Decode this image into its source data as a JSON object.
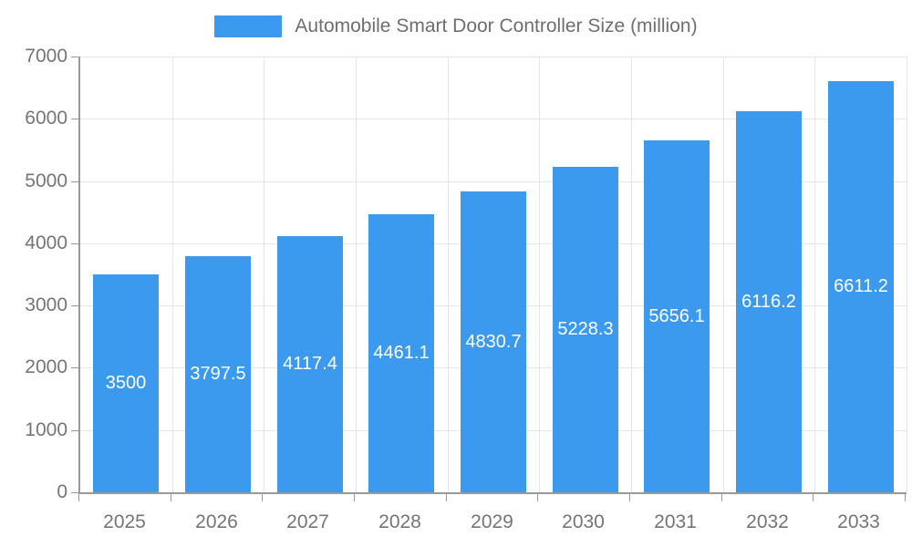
{
  "chart_data": {
    "type": "bar",
    "title": "Automobile Smart Door Controller Size (million)",
    "categories": [
      "2025",
      "2026",
      "2027",
      "2028",
      "2029",
      "2030",
      "2031",
      "2032",
      "2033"
    ],
    "values": [
      3500,
      3797.5,
      4117.4,
      4461.1,
      4830.7,
      5228.3,
      5656.1,
      6116.2,
      6611.2
    ],
    "xlabel": "",
    "ylabel": "",
    "ylim": [
      0,
      7000
    ],
    "ytick_step": 1000,
    "yticks": [
      "0",
      "1000",
      "2000",
      "3000",
      "4000",
      "5000",
      "6000",
      "7000"
    ],
    "grid": true,
    "legend_position": "top-center",
    "bar_label_position": "inside-center",
    "colors": {
      "bar": "#3B99EE",
      "axis_line": "#999999",
      "grid_line": "#e6e6e6",
      "axis_text": "#757575",
      "legend_text": "#6e6e6e",
      "bar_label_text": "#ffffff",
      "background": "#ffffff"
    }
  }
}
